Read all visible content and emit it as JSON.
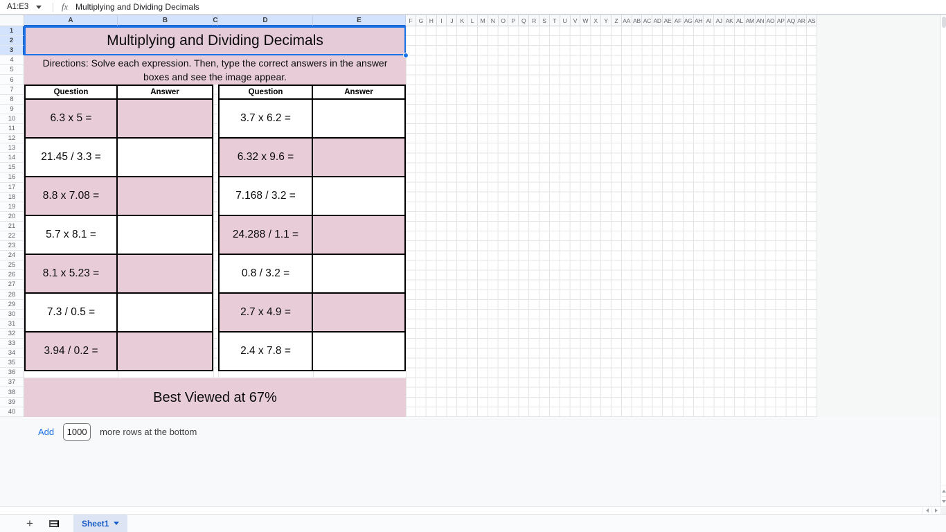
{
  "formula_bar": {
    "cell_reference": "A1:E3",
    "fx_label": "fx",
    "formula_value": "Multiplying and Dividing Decimals"
  },
  "grid": {
    "wide_columns": [
      "A",
      "B",
      "C",
      "D",
      "E"
    ],
    "narrow_columns": [
      "F",
      "G",
      "H",
      "I",
      "J",
      "K",
      "L",
      "M",
      "N",
      "O",
      "P",
      "Q",
      "R",
      "S",
      "T",
      "U",
      "V",
      "W",
      "X",
      "Y",
      "Z",
      "AA",
      "AB",
      "AC",
      "AD",
      "AE",
      "AF",
      "AG",
      "AH",
      "AI",
      "AJ",
      "AK",
      "AL",
      "AM",
      "AN",
      "AO",
      "AP",
      "AQ",
      "AR",
      "AS"
    ],
    "row_count": 40,
    "selected_columns": [
      "A",
      "B",
      "C",
      "D",
      "E"
    ],
    "selected_rows": [
      1,
      2,
      3
    ]
  },
  "worksheet": {
    "title": "Multiplying and Dividing Decimals",
    "directions": "Directions: Solve each expression. Then, type the correct answers in the answer boxes and see the image appear.",
    "tables": [
      {
        "headers": [
          "Question",
          "Answer"
        ],
        "rows": [
          {
            "question": "6.3 x 5 =",
            "answer": "",
            "shaded": true
          },
          {
            "question": "21.45 / 3.3 =",
            "answer": "",
            "shaded": false
          },
          {
            "question": "8.8 x 7.08 =",
            "answer": "",
            "shaded": true
          },
          {
            "question": "5.7 x 8.1 =",
            "answer": "",
            "shaded": false
          },
          {
            "question": "8.1 x 5.23 =",
            "answer": "",
            "shaded": true
          },
          {
            "question": "7.3 / 0.5 =",
            "answer": "",
            "shaded": false
          },
          {
            "question": "3.94 / 0.2 =",
            "answer": "",
            "shaded": true
          }
        ]
      },
      {
        "headers": [
          "Question",
          "Answer"
        ],
        "rows": [
          {
            "question": "3.7 x 6.2 =",
            "answer": "",
            "shaded": false
          },
          {
            "question": "6.32 x 9.6 =",
            "answer": "",
            "shaded": true
          },
          {
            "question": "7.168 / 3.2 =",
            "answer": "",
            "shaded": false
          },
          {
            "question": "24.288 / 1.1 =",
            "answer": "",
            "shaded": true
          },
          {
            "question": "0.8 / 3.2 =",
            "answer": "",
            "shaded": false
          },
          {
            "question": "2.7 x 4.9 =",
            "answer": "",
            "shaded": true
          },
          {
            "question": "2.4 x 7.8 =",
            "answer": "",
            "shaded": false
          }
        ]
      }
    ],
    "banner": "Best Viewed at 67%"
  },
  "colors": {
    "shaded_cell": "#e8cdd8",
    "selection_blue": "#1a73e8",
    "selected_header": "#d3e3fd"
  },
  "add_rows": {
    "button_label": "Add",
    "count_value": "1000",
    "suffix_label": "more rows at the bottom"
  },
  "sheet_tabs": {
    "active_label": "Sheet1"
  }
}
